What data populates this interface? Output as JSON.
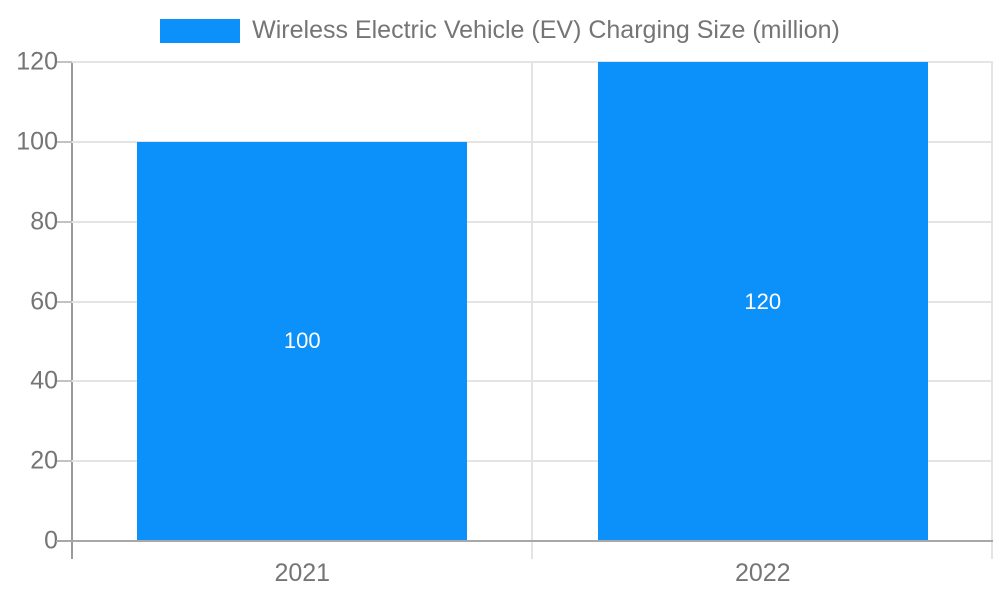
{
  "legend": {
    "label": "Wireless Electric Vehicle (EV) Charging Size (million)"
  },
  "chart_data": {
    "type": "bar",
    "title": "Wireless Electric Vehicle (EV) Charging Size (million)",
    "series": [
      {
        "name": "Wireless Electric Vehicle (EV) Charging Size (million)",
        "values": [
          100,
          120
        ],
        "data_labels": [
          "100",
          "120"
        ]
      }
    ],
    "categories": [
      "2021",
      "2022"
    ],
    "xlabel": "",
    "ylabel": "",
    "ylim": [
      0,
      120
    ],
    "yticks": [
      0,
      20,
      40,
      60,
      80,
      100,
      120
    ],
    "grid": true,
    "legend_position": "top-center",
    "colors": {
      "bar": "#0C90FA",
      "grid": "#e4e4e4",
      "axis": "#a3a3a3",
      "tick_label": "#757575",
      "legend_text": "#757575",
      "data_label": "#ffffff",
      "background": "#ffffff"
    }
  }
}
